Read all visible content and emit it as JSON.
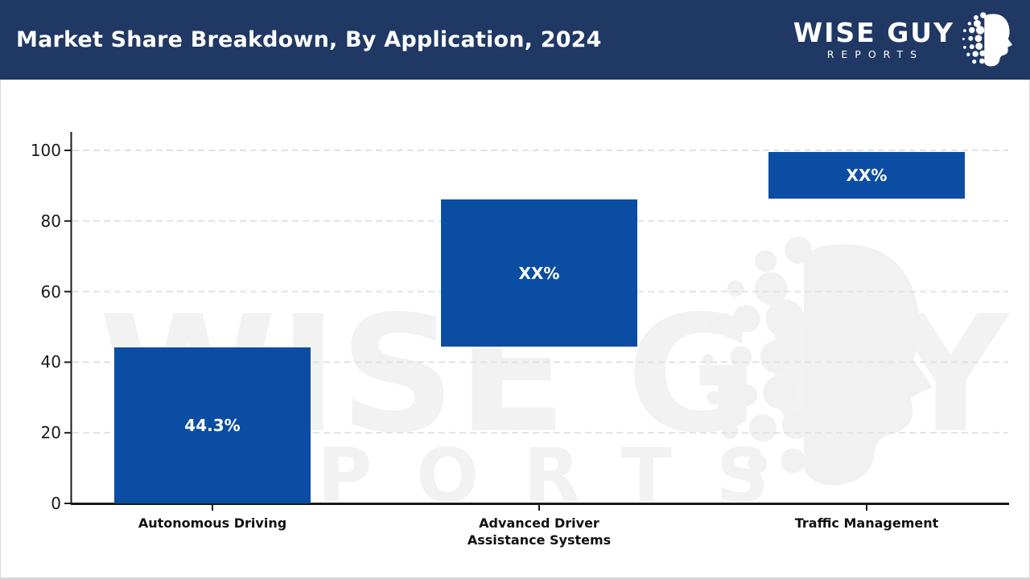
{
  "header": {
    "title": "Market Share Breakdown, By Application, 2024",
    "bg_color": "#1f3864",
    "logo": {
      "line1": "WISE GUY",
      "line2": "REPORTS",
      "face_icon": "dotted-face-profile"
    }
  },
  "watermark": {
    "line1": "WISE GUY",
    "line2": "REPORTS"
  },
  "chart_data": {
    "type": "bar",
    "subtype": "floating-segment-waterfall",
    "title": "Market Share Breakdown, By Application, 2024",
    "categories": [
      "Autonomous Driving",
      "Advanced Driver\nAssistance Systems",
      "Traffic Management"
    ],
    "segments": [
      {
        "category": "Autonomous Driving",
        "from": 0,
        "to": 44.3,
        "label": "44.3%"
      },
      {
        "category": "Advanced Driver Assistance Systems",
        "from": 44.5,
        "to": 86.0,
        "label": "XX%"
      },
      {
        "category": "Traffic Management",
        "from": 86.3,
        "to": 99.6,
        "label": "XX%"
      }
    ],
    "xlabel": "",
    "ylabel": "",
    "ylim": [
      0,
      100
    ],
    "yticks": [
      0,
      20,
      40,
      60,
      80,
      100
    ],
    "grid": "horizontal-dashed",
    "legend": "none",
    "bar_color": "#0b4da2",
    "bar_label_color": "#ffffff",
    "axis_color": "#1a1a1a",
    "gridline_color": "#e2e2e2"
  }
}
